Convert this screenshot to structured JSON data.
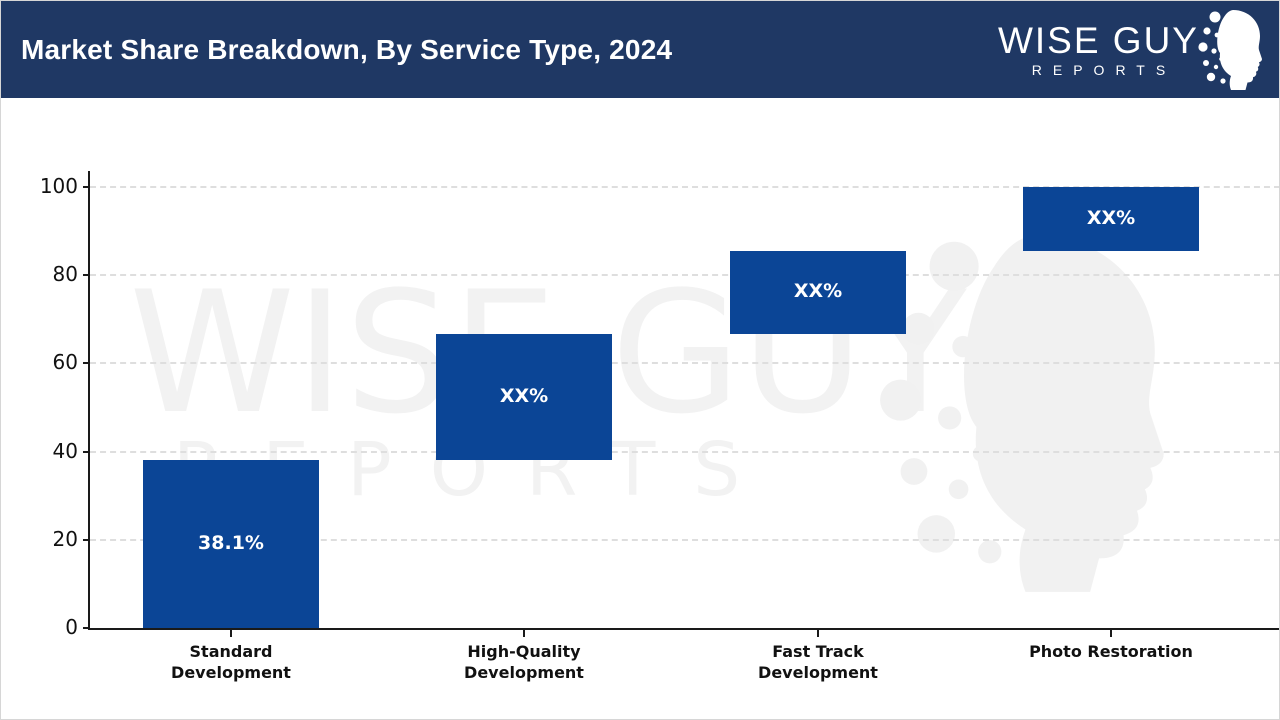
{
  "header": {
    "title": "Market Share Breakdown, By Service Type, 2024",
    "logo": {
      "line1": "WISE GUY",
      "line2": "REPORTS"
    }
  },
  "watermark": {
    "line1": "WISE GUY",
    "line2": "REPORTS"
  },
  "colors": {
    "header_bg": "#1f3864",
    "bar": "#0b4596",
    "bar_label": "#ffffff",
    "gridline": "#dedede",
    "axis": "#1a1a1a",
    "watermark": "#f2f2f2"
  },
  "chart_data": {
    "type": "bar",
    "variant": "waterfall",
    "title": "Market Share Breakdown, By Service Type, 2024",
    "categories": [
      "Standard\nDevelopment",
      "High-Quality\nDevelopment",
      "Fast Track\nDevelopment",
      "Photo Restoration"
    ],
    "segments": [
      {
        "category": "Standard Development",
        "start": 0,
        "end": 38.1,
        "label": "38.1%"
      },
      {
        "category": "High-Quality Development",
        "start": 38.1,
        "end": 66.6,
        "label": "XX%"
      },
      {
        "category": "Fast Track Development",
        "start": 66.6,
        "end": 85.6,
        "label": "XX%"
      },
      {
        "category": "Photo Restoration",
        "start": 85.6,
        "end": 100,
        "label": "XX%"
      }
    ],
    "ylim": [
      0,
      100
    ],
    "yticks": [
      0,
      20,
      40,
      60,
      80,
      100
    ],
    "xlabel": "",
    "ylabel": "",
    "grid": "horizontal-dashed",
    "legend": "none"
  }
}
